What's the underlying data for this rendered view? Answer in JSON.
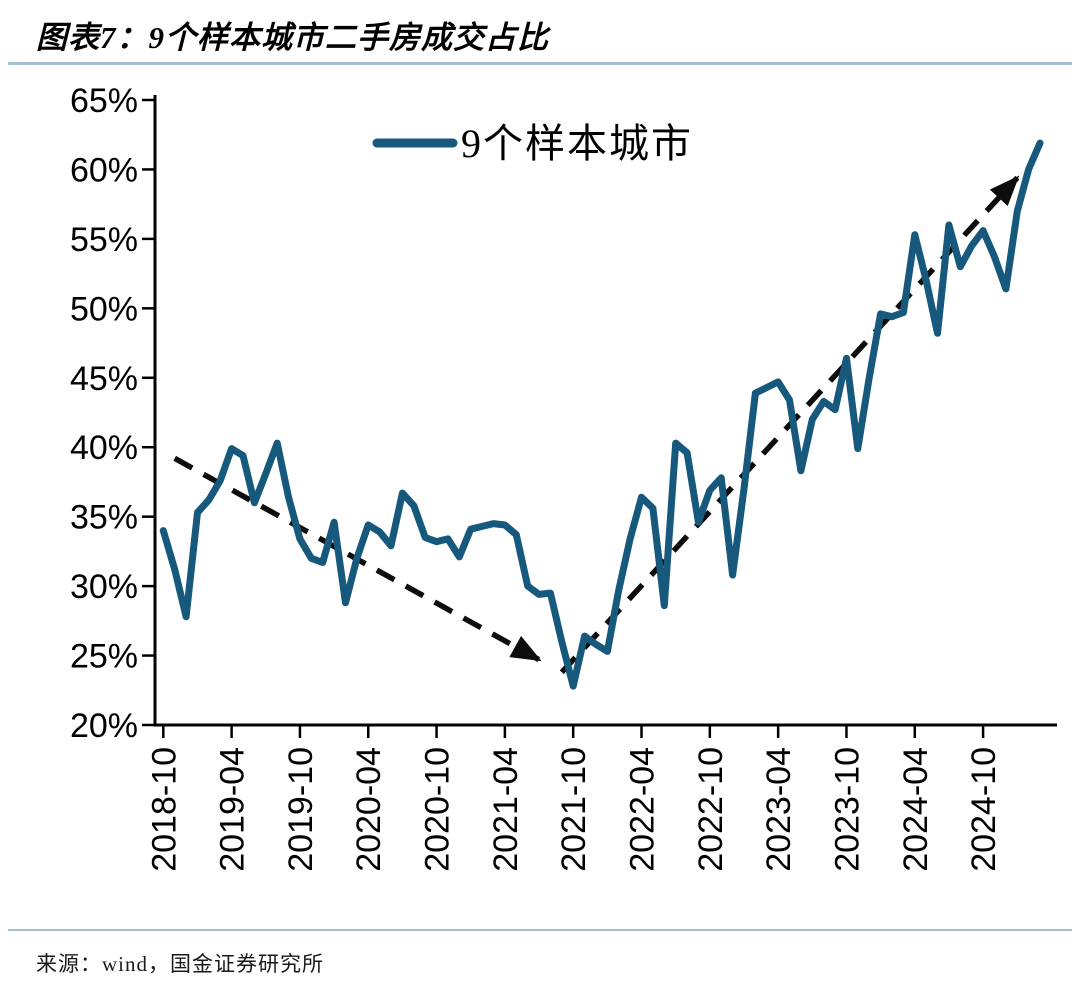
{
  "header": {
    "title": "图表7：9个样本城市二手房成交占比"
  },
  "footer": {
    "source": "来源：wind，国金证券研究所"
  },
  "colors": {
    "series_line": "#17587d",
    "trend_arrow": "#0d0d0d",
    "divider": "#a6bfce",
    "axis": "#000000",
    "text": "#000000"
  },
  "chart_data": {
    "type": "line",
    "title": "9个样本城市二手房成交占比",
    "legend": {
      "label": "9个样本城市",
      "position": "top-center"
    },
    "grid": false,
    "ylim": [
      20,
      65
    ],
    "y_ticks": [
      "20%",
      "25%",
      "30%",
      "35%",
      "40%",
      "45%",
      "50%",
      "55%",
      "60%",
      "65%"
    ],
    "x_ticks": [
      "2018-10",
      "2019-04",
      "2019-10",
      "2020-04",
      "2020-10",
      "2021-04",
      "2021-10",
      "2022-04",
      "2022-10",
      "2023-04",
      "2023-10",
      "2024-04",
      "2024-10"
    ],
    "x": [
      "2018-10",
      "2018-11",
      "2018-12",
      "2019-01",
      "2019-02",
      "2019-03",
      "2019-04",
      "2019-05",
      "2019-06",
      "2019-07",
      "2019-08",
      "2019-09",
      "2019-10",
      "2019-11",
      "2019-12",
      "2020-01",
      "2020-02",
      "2020-03",
      "2020-04",
      "2020-05",
      "2020-06",
      "2020-07",
      "2020-08",
      "2020-09",
      "2020-10",
      "2020-11",
      "2020-12",
      "2021-01",
      "2021-02",
      "2021-03",
      "2021-04",
      "2021-05",
      "2021-06",
      "2021-07",
      "2021-08",
      "2021-09",
      "2021-10",
      "2021-11",
      "2021-12",
      "2022-01",
      "2022-02",
      "2022-03",
      "2022-04",
      "2022-05",
      "2022-06",
      "2022-07",
      "2022-08",
      "2022-09",
      "2022-10",
      "2022-11",
      "2022-12",
      "2023-01",
      "2023-02",
      "2023-03",
      "2023-04",
      "2023-05",
      "2023-06",
      "2023-07",
      "2023-08",
      "2023-09",
      "2023-10",
      "2023-11",
      "2023-12",
      "2024-01",
      "2024-02",
      "2024-03",
      "2024-04",
      "2024-05",
      "2024-06",
      "2024-07",
      "2024-08",
      "2024-09",
      "2024-10",
      "2024-11",
      "2024-12",
      "2025-01",
      "2025-02",
      "2025-03"
    ],
    "series": [
      {
        "name": "9个样本城市",
        "color": "#17587d",
        "unit": "%",
        "values": [
          34.0,
          31.2,
          27.8,
          35.3,
          36.2,
          37.6,
          39.9,
          39.4,
          36.0,
          38.1,
          40.3,
          36.4,
          33.4,
          32.0,
          31.7,
          34.6,
          28.8,
          32.0,
          34.4,
          33.9,
          32.9,
          36.7,
          35.8,
          33.5,
          33.2,
          33.4,
          32.1,
          34.1,
          34.3,
          34.5,
          34.4,
          33.7,
          30.0,
          29.4,
          29.5,
          26.0,
          22.8,
          26.4,
          25.8,
          25.3,
          29.7,
          33.4,
          36.4,
          35.6,
          28.6,
          40.3,
          39.6,
          34.6,
          36.9,
          37.8,
          30.8,
          37.0,
          43.9,
          44.3,
          44.7,
          43.4,
          38.3,
          42.0,
          43.3,
          42.7,
          46.4,
          39.9,
          45.0,
          49.6,
          49.4,
          49.7,
          55.3,
          52.0,
          48.2,
          56.0,
          53.0,
          54.5,
          55.6,
          53.7,
          51.4,
          57.0,
          60.0,
          61.9
        ]
      }
    ],
    "annotations": [
      {
        "type": "dashed-arrow",
        "direction": "down",
        "from": {
          "x": "2018-11",
          "y": 39.2
        },
        "to": {
          "x": "2021-07",
          "y": 24.7
        }
      },
      {
        "type": "dashed-arrow",
        "direction": "up",
        "from": {
          "x": "2021-09",
          "y": 23.8
        },
        "to": {
          "x": "2025-01",
          "y": 59.4
        }
      }
    ]
  }
}
